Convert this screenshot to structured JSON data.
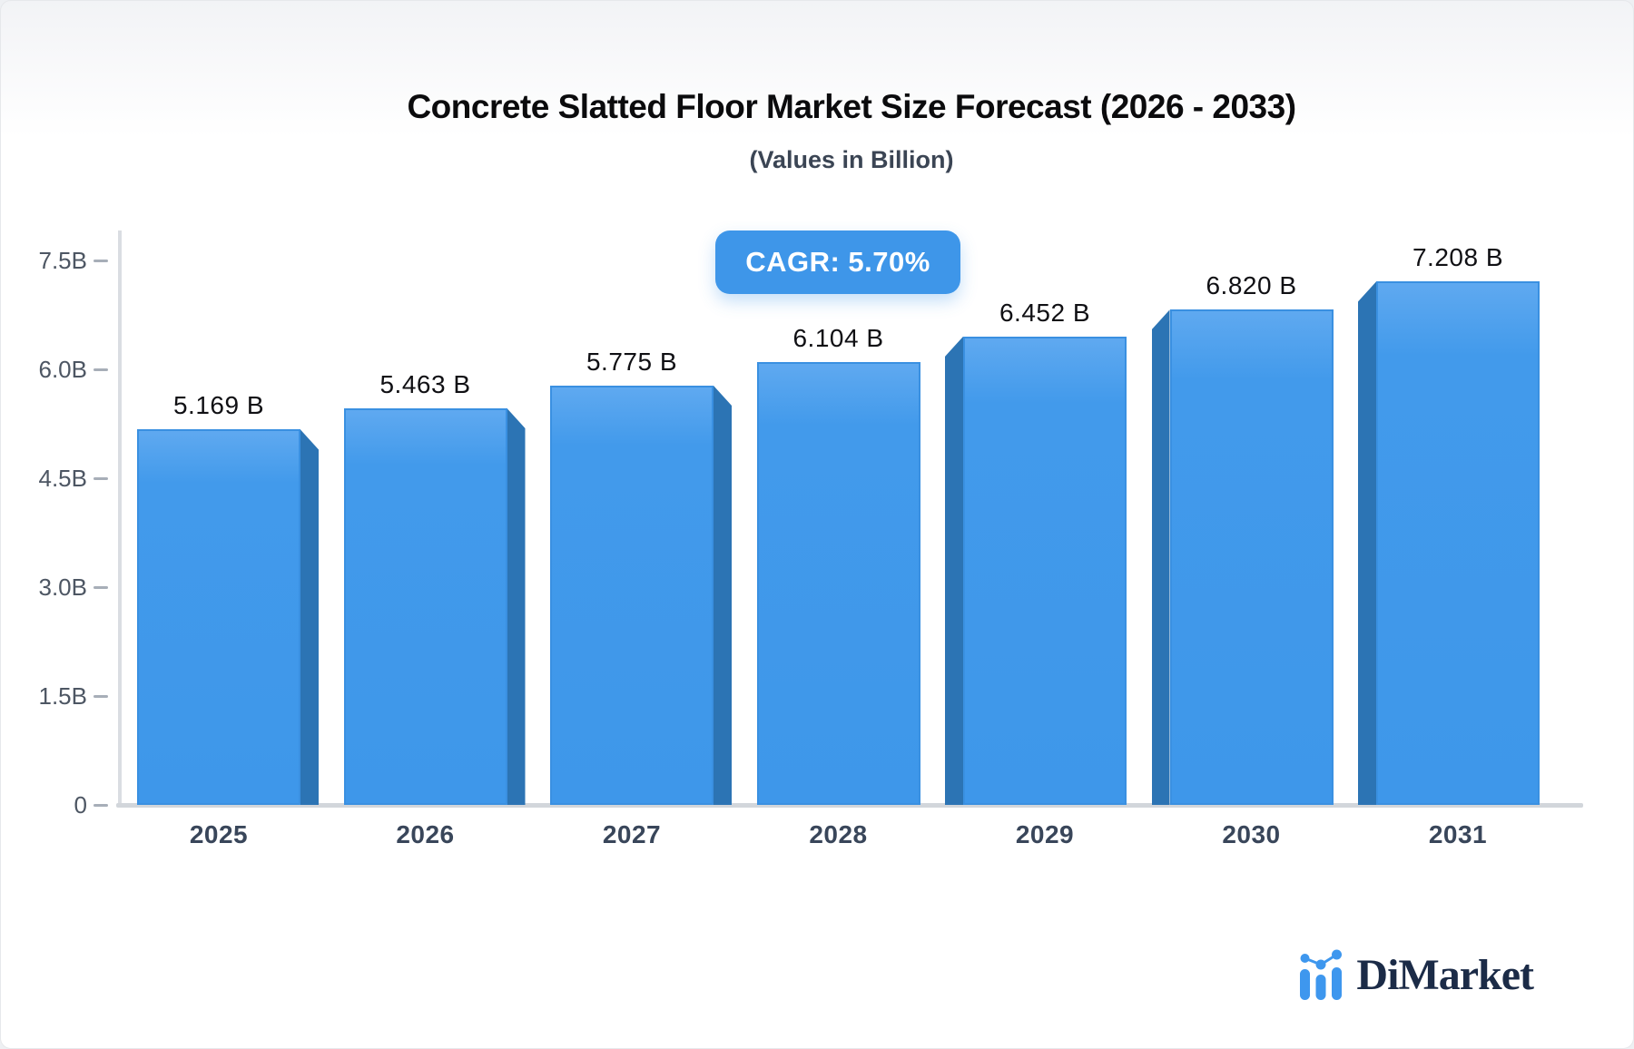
{
  "title": "Concrete Slatted Floor Market Size Forecast (2026 - 2033)",
  "subtitle": "(Values in Billion)",
  "cagr_badge_label": "CAGR: 5.70%",
  "logo": {
    "text": "DiMarket",
    "icon": "mini-bar-chart-logo-icon"
  },
  "colors": {
    "bar_face": "#3e97ea",
    "bar_face_top": "#5fa9f0",
    "bar_side": "#2c74b4",
    "badge_blue": "#3e96e9",
    "logo_blue": "#3e97ee",
    "logo_navy": "#1b2b47",
    "axis_gray": "#d2d6db",
    "tick_text": "#4d5663",
    "category_text": "#39465a"
  },
  "chart_data": {
    "type": "bar",
    "categories": [
      "2025",
      "2026",
      "2027",
      "2028",
      "2029",
      "2030",
      "2031"
    ],
    "values": [
      5.169,
      5.463,
      5.775,
      6.104,
      6.452,
      6.82,
      7.208
    ],
    "value_labels": [
      "5.169 B",
      "5.463 B",
      "5.775 B",
      "6.104 B",
      "6.452 B",
      "6.820 B",
      "7.208 B"
    ],
    "title": "Concrete Slatted Floor Market Size Forecast (2026 - 2033)",
    "subtitle": "(Values in Billion)",
    "annotation": "CAGR: 5.70%",
    "xlabel": "",
    "ylabel": "",
    "ylim": [
      0,
      7.5
    ],
    "y_ticks": [
      {
        "value": 7.5,
        "label": "7.5B"
      },
      {
        "value": 6.0,
        "label": "6.0B"
      },
      {
        "value": 4.5,
        "label": "4.5B"
      },
      {
        "value": 3.0,
        "label": "3.0B"
      },
      {
        "value": 1.5,
        "label": "1.5B"
      },
      {
        "value": 0,
        "label": "0"
      }
    ],
    "grid": false,
    "legend": "none",
    "bar_3d_side": [
      "right",
      "right",
      "right",
      "none",
      "left",
      "left",
      "left"
    ]
  }
}
